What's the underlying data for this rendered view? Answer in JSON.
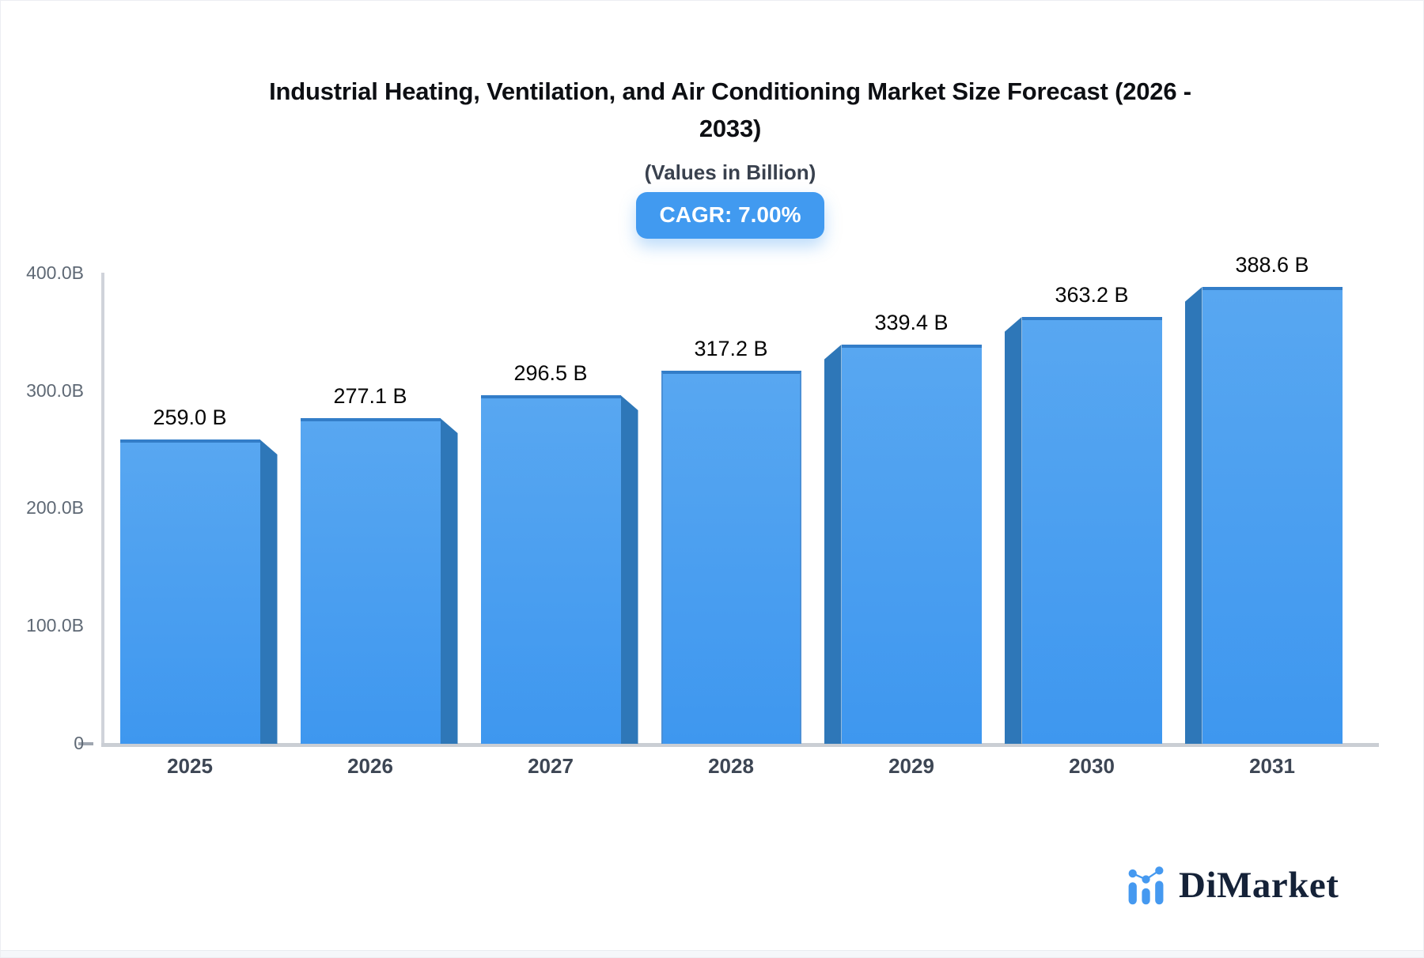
{
  "header": {
    "title_line1": "Industrial Heating, Ventilation, and Air Conditioning Market Size Forecast (2026 -",
    "title_line2": "2033)",
    "subtitle": "(Values in Billion)",
    "cagr_badge": "CAGR: 7.00%"
  },
  "chart_data": {
    "type": "bar",
    "title": "Industrial Heating, Ventilation, and Air Conditioning Market Size Forecast (2026 - 2033)",
    "subtitle": "(Values in Billion)",
    "cagr_label": "CAGR: 7.00%",
    "cagr_percent": 7.0,
    "categories": [
      "2025",
      "2026",
      "2027",
      "2028",
      "2029",
      "2030",
      "2031"
    ],
    "values": [
      259.0,
      277.1,
      296.5,
      317.2,
      339.4,
      363.2,
      388.6
    ],
    "value_labels": [
      "259.0 B",
      "277.1 B",
      "296.5 B",
      "317.2 B",
      "339.4 B",
      "363.2 B",
      "388.6 B"
    ],
    "value_suffix": "B",
    "xlabel": "",
    "ylabel": "",
    "ylim": [
      0,
      400
    ],
    "yticks": [
      "400.0B",
      "300.0B",
      "200.0B",
      "100.0B",
      "0"
    ],
    "grid": false,
    "legend": false,
    "bar_colors": {
      "face_top": "#58a7f1",
      "face_bottom": "#3e97ef",
      "side": "#2e77b8",
      "edge": "#337dc8"
    }
  },
  "footer": {
    "brand": "DiMarket",
    "logo_icon": "bar-chart-logo-icon"
  },
  "colors": {
    "badge_bg": "#419af0",
    "badge_text": "#ffffff",
    "title": "#0d0f13",
    "subtitle": "#39414e",
    "ytick_label": "#5f6975",
    "xtick_label": "#3d4654",
    "value_label": "#060606",
    "axis": "#d0d3da",
    "baseline": "#caced4",
    "background": "#ffffff",
    "logo_text": "#152238",
    "logo_icon": "#4599f0"
  }
}
